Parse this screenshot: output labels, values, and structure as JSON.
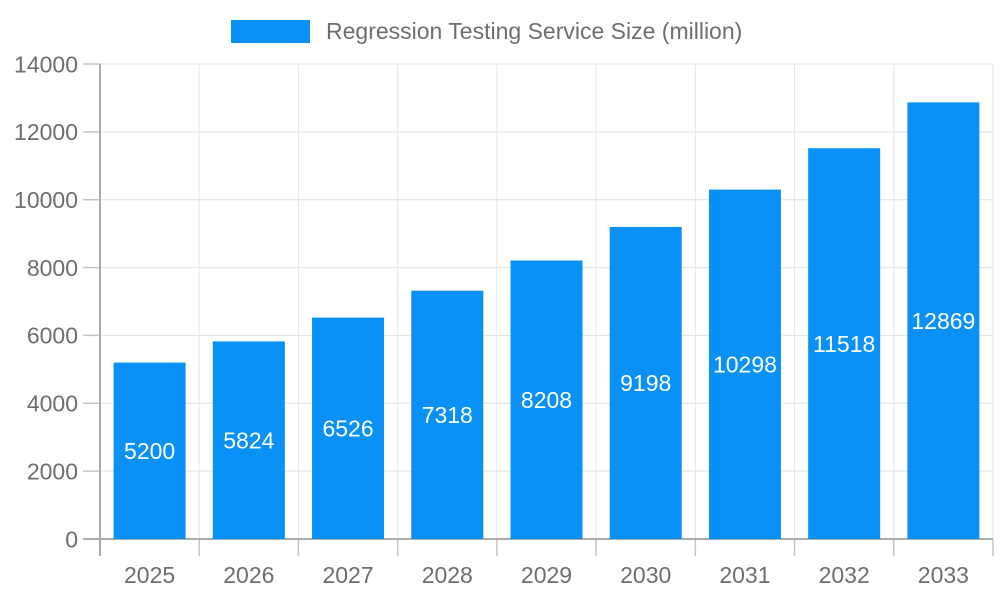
{
  "legend": {
    "label": "Regression Testing Service Size (million)"
  },
  "colors": {
    "bar": "#0991f8",
    "axis_line": "#ababab",
    "grid_line_h": "#e0e0e0",
    "grid_line_v": "#e7e7e7",
    "tick_line": "#c4c4c4",
    "label_text": "#6e6e6e",
    "value_label_text": "#ffffff",
    "background": "#ffffff"
  },
  "chart_data": {
    "type": "bar",
    "title": "Regression Testing Service Size (million)",
    "categories": [
      "2025",
      "2026",
      "2027",
      "2028",
      "2029",
      "2030",
      "2031",
      "2032",
      "2033"
    ],
    "values": [
      5200,
      5824,
      6526,
      7318,
      8208,
      9198,
      10298,
      11518,
      12869
    ],
    "xlabel": "",
    "ylabel": "",
    "ylim": [
      0,
      14000
    ],
    "ytick_step": 2000,
    "yticks": [
      0,
      2000,
      4000,
      6000,
      8000,
      10000,
      12000,
      14000
    ],
    "grid": true,
    "legend_position": "top-center",
    "value_labels_position": "inside-center"
  }
}
